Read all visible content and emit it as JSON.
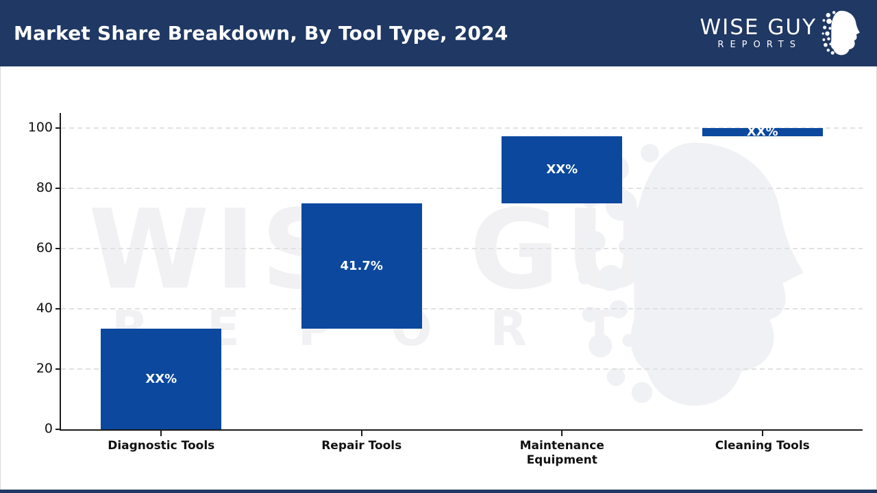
{
  "header": {
    "title": "Market Share Breakdown, By Tool Type, 2024",
    "bg_color": "#1F3864",
    "logo": {
      "line1": "WISE GUY",
      "line2": "REPORTS"
    }
  },
  "watermark": {
    "line1": "WISE GUY",
    "line2": "REPORTS"
  },
  "chart_data": {
    "type": "bar",
    "variant": "waterfall",
    "title": "Market Share Breakdown, By Tool Type, 2024",
    "categories": [
      "Diagnostic Tools",
      "Repair Tools",
      "Maintenance Equipment",
      "Cleaning Tools"
    ],
    "segments": [
      {
        "category": "Diagnostic Tools",
        "start": 0,
        "end": 33.3,
        "label": "XX%"
      },
      {
        "category": "Repair Tools",
        "start": 33.3,
        "end": 75.0,
        "label": "41.7%"
      },
      {
        "category": "Maintenance Equipment",
        "start": 75.0,
        "end": 97.2,
        "label": "XX%"
      },
      {
        "category": "Cleaning Tools",
        "start": 97.2,
        "end": 100.0,
        "label": "XX%"
      }
    ],
    "yticks": [
      0,
      20,
      40,
      60,
      80,
      100
    ],
    "ylim": [
      0,
      105
    ],
    "xlabel": "",
    "ylabel": "",
    "grid": "horizontal-dashed",
    "legend": "none",
    "bar_color": "#0B489E",
    "bar_label_color": "#ffffff",
    "axis_color": "#1a1a1a",
    "grid_color": "#e1e1e1"
  }
}
